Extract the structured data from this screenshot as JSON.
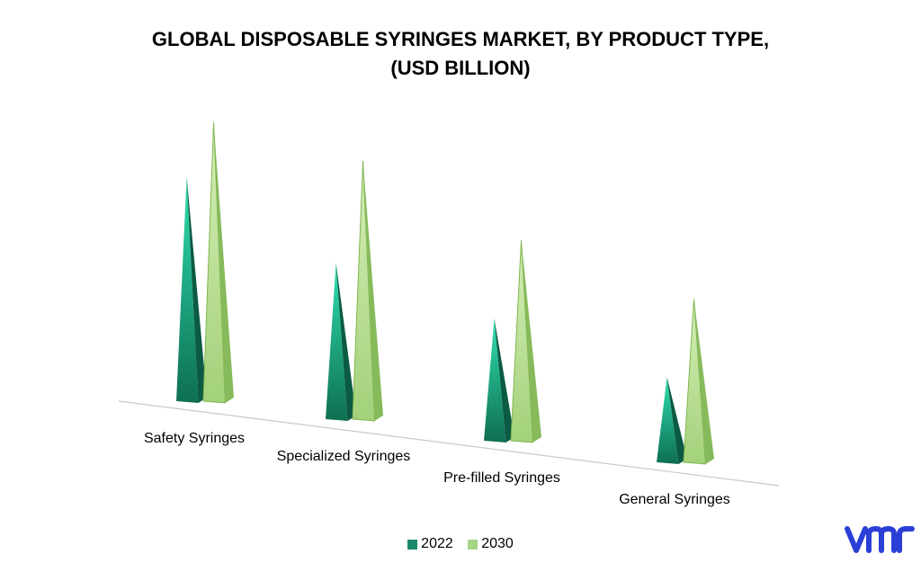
{
  "chart_data": {
    "type": "bar",
    "title": "GLOBAL DISPOSABLE SYRINGES MARKET, BY PRODUCT TYPE,",
    "subtitle": "(USD BILLION)",
    "categories": [
      "Safety Syringes",
      "Specialized Syringes",
      "Pre-filled Syringes",
      "General Syringes"
    ],
    "series": [
      {
        "name": "2022",
        "values": [
          6.6,
          4.6,
          3.6,
          2.5
        ],
        "color": "#1a8a6a"
      },
      {
        "name": "2030",
        "values": [
          8.2,
          7.6,
          5.9,
          4.8
        ],
        "color": "#a8d585"
      }
    ],
    "ylim": [
      0,
      9
    ],
    "grid": false,
    "legend": "bottom-center",
    "style": "3d-cone"
  },
  "logo": {
    "name": "vmr-logo",
    "color": "#2a3fd6"
  }
}
